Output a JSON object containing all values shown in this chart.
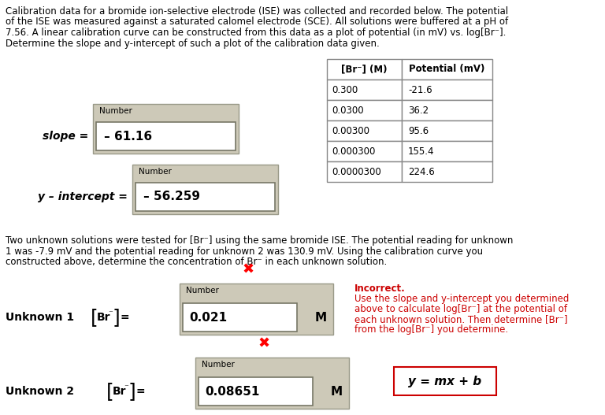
{
  "intro_lines": [
    "Calibration data for a bromide ion-selective electrode (ISE) was collected and recorded below. The potential",
    "of the ISE was measured against a saturated calomel electrode (SCE). All solutions were buffered at a pH of",
    "7.56. A linear calibration curve can be constructed from this data as a plot of potential (in mV) vs. log[Br⁻].",
    "Determine the slope and y-intercept of such a plot of the calibration data given."
  ],
  "slope_label": "slope =",
  "slope_value": "– 61.16",
  "yint_label": "y – intercept =",
  "yint_value": "– 56.259",
  "number_label": "Number",
  "table_header": [
    "[Br⁻] (M)",
    "Potential (mV)"
  ],
  "table_rows": [
    [
      "0.300",
      "-21.6"
    ],
    [
      "0.0300",
      "36.2"
    ],
    [
      "0.00300",
      "95.6"
    ],
    [
      "0.000300",
      "155.4"
    ],
    [
      "0.0000300",
      "224.6"
    ]
  ],
  "para2_lines": [
    "Two unknown solutions were tested for [Br⁻] using the same bromide ISE. The potential reading for unknown",
    "1 was -7.9 mV and the potential reading for unknown 2 was 130.9 mV. Using the calibration curve you",
    "constructed above, determine the concentration of Br⁻ in each unknown solution."
  ],
  "unk1_label": "Unknown 1",
  "unk1_value": "0.021",
  "unk1_unit": "M",
  "unk2_label": "Unknown 2",
  "unk2_value": "0.08651",
  "unk2_unit": "M",
  "incorrect_lines": [
    "Incorrect.",
    "Use the slope and y-intercept you determined",
    "above to calculate log[Br⁻] at the potential of",
    "each unknown solution. Then determine [Br⁻]",
    "from the log[Br⁻] you determine."
  ],
  "formula_text": "y = mx + b",
  "bg_color": "#ffffff",
  "box_fill": "#cdc9b8",
  "box_border": "#999988",
  "answer_fill": "#ffffff",
  "answer_border": "#777766",
  "table_border": "#888888",
  "incorrect_color": "#cc0000",
  "formula_border": "#cc0000",
  "text_color": "#000000",
  "fs_body": 8.5,
  "fs_small": 7.5,
  "fs_bold": 10.0,
  "fs_value": 11.0,
  "fs_formula": 11.0
}
